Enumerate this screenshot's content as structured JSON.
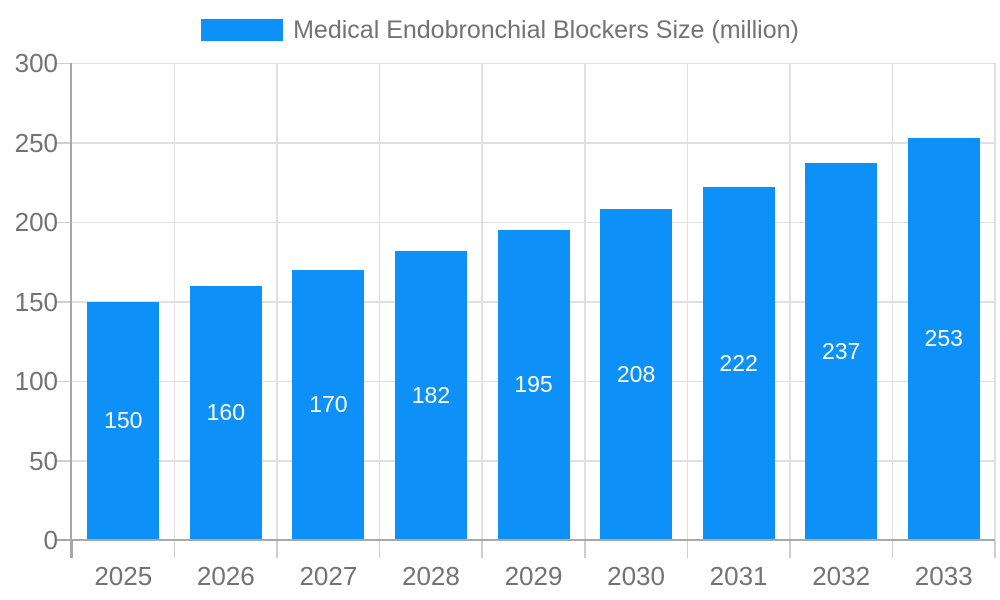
{
  "legend": {
    "label": "Medical Endobronchial Blockers Size (million)"
  },
  "colors": {
    "bar": "#0e90f9",
    "bar_label": "#ffffff",
    "grid": "#e0e0e0",
    "axis": "#a8a8a8",
    "tick": "#cfcfcf",
    "text": "#737373",
    "background": "#ffffff"
  },
  "chart_data": {
    "type": "bar",
    "title": "Medical Endobronchial Blockers Size (million)",
    "categories": [
      "2025",
      "2026",
      "2027",
      "2028",
      "2029",
      "2030",
      "2031",
      "2032",
      "2033"
    ],
    "values": [
      150,
      160,
      170,
      182,
      195,
      208,
      222,
      237,
      253
    ],
    "xlabel": "",
    "ylabel": "",
    "ylim": [
      0,
      300
    ],
    "yticks": [
      0,
      50,
      100,
      150,
      200,
      250,
      300
    ],
    "grid": true,
    "legend_position": "top",
    "bar_labels": "inside-center-white"
  }
}
